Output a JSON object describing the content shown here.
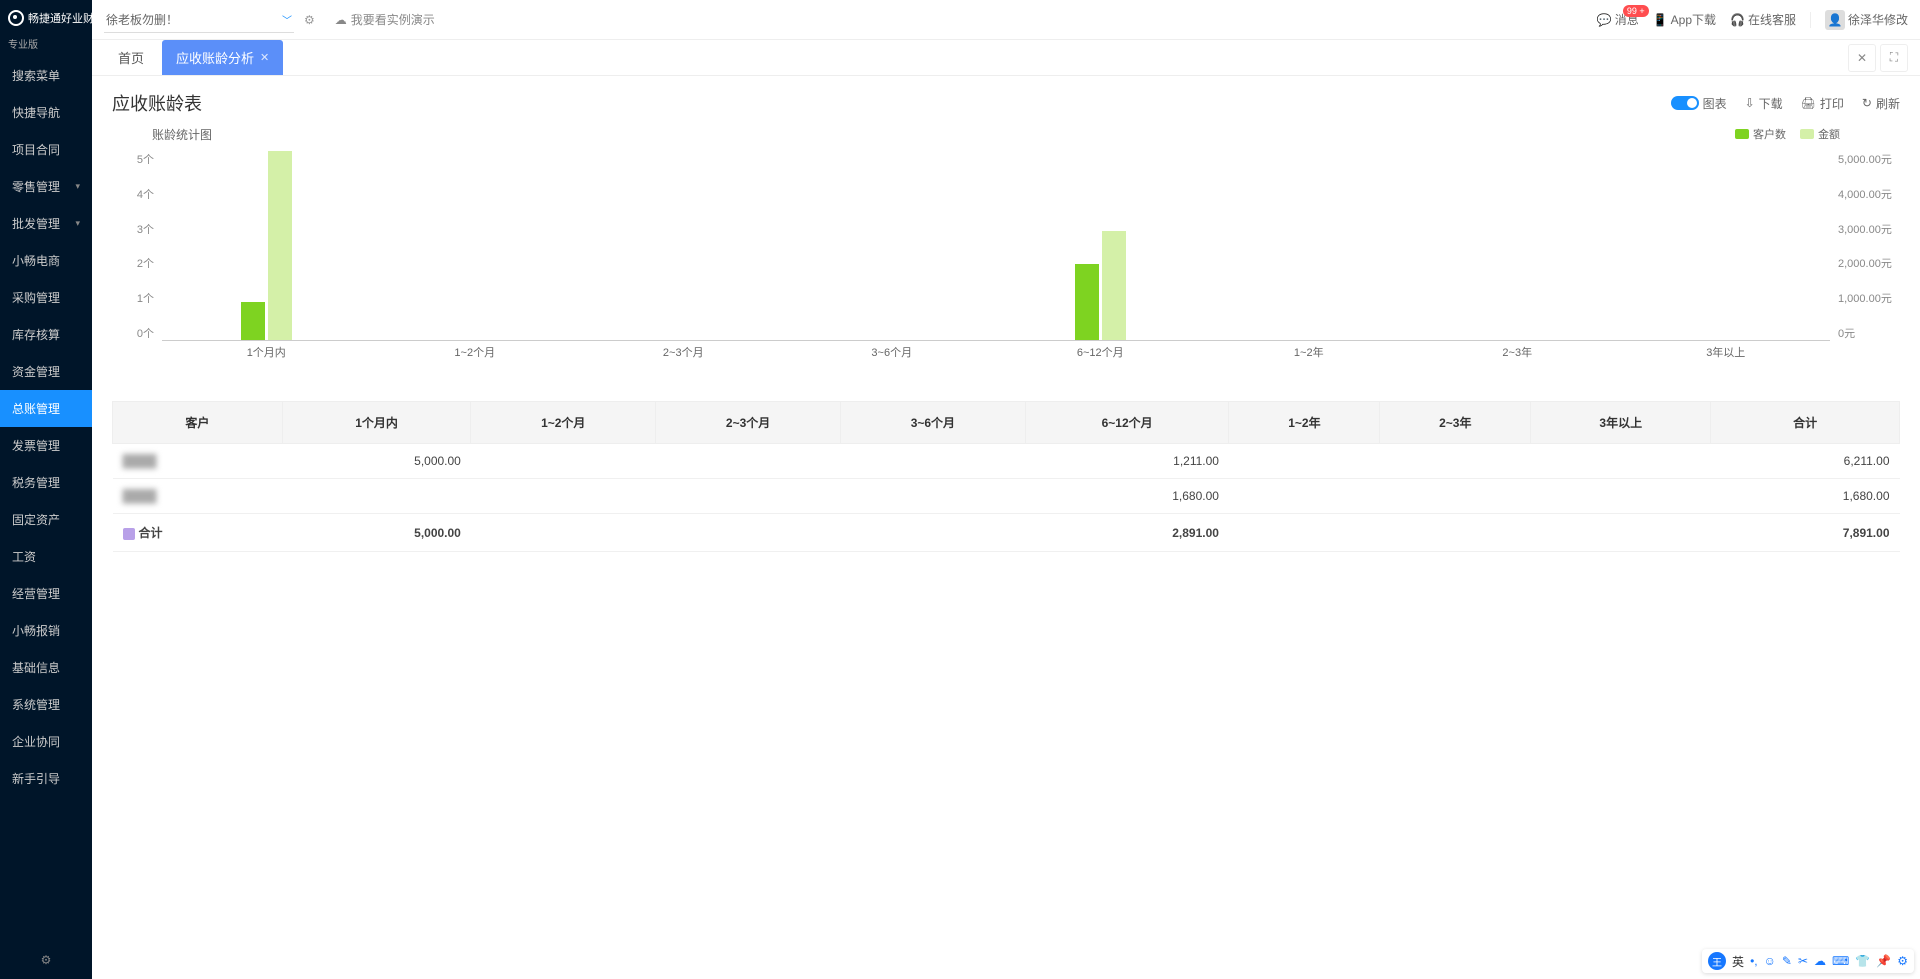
{
  "brand": {
    "name": "畅捷通好业财",
    "edition": "专业版"
  },
  "sidebar": {
    "items": [
      {
        "label": "搜索菜单",
        "expandable": false
      },
      {
        "label": "快捷导航",
        "expandable": false
      },
      {
        "label": "项目合同",
        "expandable": false
      },
      {
        "label": "零售管理",
        "expandable": true
      },
      {
        "label": "批发管理",
        "expandable": true
      },
      {
        "label": "小畅电商",
        "expandable": false
      },
      {
        "label": "采购管理",
        "expandable": false
      },
      {
        "label": "库存核算",
        "expandable": false
      },
      {
        "label": "资金管理",
        "expandable": false
      },
      {
        "label": "总账管理",
        "expandable": false,
        "active": true
      },
      {
        "label": "发票管理",
        "expandable": false
      },
      {
        "label": "税务管理",
        "expandable": false
      },
      {
        "label": "固定资产",
        "expandable": false
      },
      {
        "label": "工资",
        "expandable": false
      },
      {
        "label": "经营管理",
        "expandable": false
      },
      {
        "label": "小畅报销",
        "expandable": false
      },
      {
        "label": "基础信息",
        "expandable": false
      },
      {
        "label": "系统管理",
        "expandable": false
      },
      {
        "label": "企业协同",
        "expandable": false
      },
      {
        "label": "新手引导",
        "expandable": false
      }
    ]
  },
  "topbar": {
    "org": "徐老板勿删！",
    "demo": "我要看实例演示",
    "actions": {
      "message": "消息",
      "message_badge": "99 +",
      "download": "App下载",
      "service": "在线客服",
      "user": "徐泽华修改"
    }
  },
  "tabs": [
    {
      "label": "首页",
      "active": false,
      "closable": false
    },
    {
      "label": "应收账龄分析",
      "active": true,
      "closable": true
    }
  ],
  "page": {
    "title": "应收账龄表",
    "toolbar": {
      "chart_toggle": "图表",
      "download": "下载",
      "print": "打印",
      "refresh": "刷新"
    }
  },
  "chart": {
    "title": "账龄统计图",
    "legend": [
      {
        "label": "客户数",
        "color": "#7ed321"
      },
      {
        "label": "金额",
        "color": "#d4f0a8"
      }
    ],
    "y_left": {
      "ticks": [
        "5个",
        "4个",
        "3个",
        "2个",
        "1个",
        "0个"
      ],
      "max": 5
    },
    "y_right": {
      "ticks": [
        "5,000.00元",
        "4,000.00元",
        "3,000.00元",
        "2,000.00元",
        "1,000.00元",
        "0元"
      ],
      "max": 5000
    },
    "categories": [
      "1个月内",
      "1~2个月",
      "2~3个月",
      "3~6个月",
      "6~12个月",
      "1~2年",
      "2~3年",
      "3年以上"
    ],
    "series_customers": [
      1,
      0,
      0,
      0,
      2,
      0,
      0,
      0
    ],
    "series_amount": [
      5000,
      0,
      0,
      0,
      2891,
      0,
      0,
      0
    ],
    "colors": {
      "customers": "#7ed321",
      "amount": "#d4f0a8"
    }
  },
  "table": {
    "columns": [
      "客户",
      "1个月内",
      "1~2个月",
      "2~3个月",
      "3~6个月",
      "6~12个月",
      "1~2年",
      "2~3年",
      "3年以上",
      "合计"
    ],
    "rows": [
      {
        "customer": "████",
        "blur": true,
        "cells": [
          "5,000.00",
          "",
          "",
          "",
          "1,211.00",
          "",
          "",
          "",
          "6,211.00"
        ]
      },
      {
        "customer": "████",
        "blur": true,
        "cells": [
          "",
          "",
          "",
          "",
          "1,680.00",
          "",
          "",
          "",
          "1,680.00"
        ]
      }
    ],
    "total": {
      "label": "合计",
      "cells": [
        "5,000.00",
        "",
        "",
        "",
        "2,891.00",
        "",
        "",
        "",
        "7,891.00"
      ]
    }
  },
  "ime": {
    "badge": "王",
    "lang": "英"
  }
}
